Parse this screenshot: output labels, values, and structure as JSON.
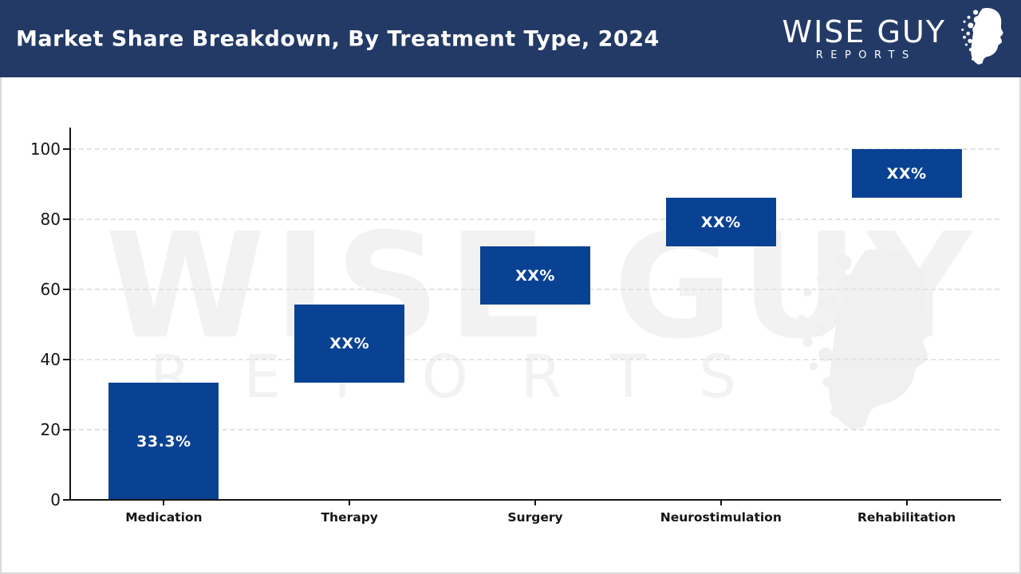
{
  "header": {
    "title": "Market Share Breakdown, By Treatment Type, 2024",
    "logo": {
      "line1": "WISE GUY",
      "line2": "REPORTS"
    }
  },
  "watermark": {
    "line1": "WISE GUY",
    "line2": "REPORTS"
  },
  "colors": {
    "header_bg": "#233a66",
    "bar": "#0a4293",
    "grid": "#e3e3e3",
    "axis": "#151515",
    "watermark": "#f2f2f2",
    "bar_label": "#ffffff",
    "title_text": "#ffffff"
  },
  "chart_data": {
    "type": "bar",
    "subtype": "waterfall",
    "title": "Market Share Breakdown, By Treatment Type, 2024",
    "xlabel": "",
    "ylabel": "",
    "ylim": [
      0,
      100
    ],
    "yticks": [
      0,
      20,
      40,
      60,
      80,
      100
    ],
    "grid": "horizontal-dashed",
    "legend": "none",
    "categories": [
      "Medication",
      "Therapy",
      "Surgery",
      "Neurostimulation",
      "Rehabilitation"
    ],
    "segments": [
      {
        "category": "Medication",
        "start": 0,
        "end": 33.3,
        "label": "33.3%"
      },
      {
        "category": "Therapy",
        "start": 33.3,
        "end": 55.6,
        "label": "XX%"
      },
      {
        "category": "Surgery",
        "start": 55.6,
        "end": 72.2,
        "label": "XX%"
      },
      {
        "category": "Neurostimulation",
        "start": 72.2,
        "end": 86.1,
        "label": "XX%"
      },
      {
        "category": "Rehabilitation",
        "start": 86.1,
        "end": 100,
        "label": "XX%"
      }
    ]
  }
}
